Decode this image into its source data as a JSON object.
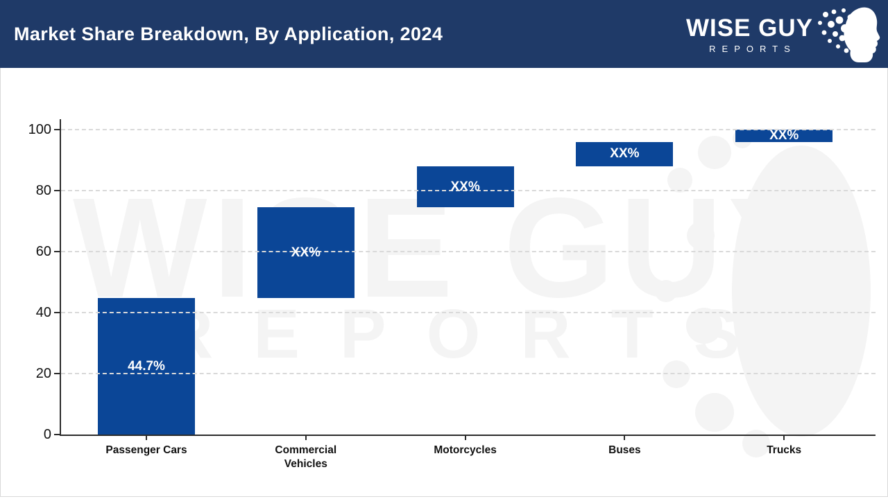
{
  "header": {
    "title": "Market Share Breakdown, By Application, 2024",
    "logo": {
      "line1": "WISE GUY",
      "line2": "REPORTS"
    }
  },
  "watermark": {
    "line1": "WISE GUY",
    "line2": "REPORTS"
  },
  "chart_data": {
    "type": "bar",
    "subtype": "waterfall",
    "title": "Market Share Breakdown, By Application, 2024",
    "xlabel": "",
    "ylabel": "",
    "ylim": [
      0,
      100
    ],
    "yticks": [
      0,
      20,
      40,
      60,
      80,
      100
    ],
    "grid": "horizontal-dashed",
    "legend": null,
    "categories": [
      "Passenger Cars",
      "Commercial Vehicles",
      "Motorcycles",
      "Buses",
      "Trucks"
    ],
    "bars": [
      {
        "category": "Passenger Cars",
        "start": 0,
        "end": 44.7,
        "label": "44.7%"
      },
      {
        "category": "Commercial Vehicles",
        "start": 44.7,
        "end": 74.5,
        "label": "XX%"
      },
      {
        "category": "Motorcycles",
        "start": 74.5,
        "end": 88.0,
        "label": "XX%"
      },
      {
        "category": "Buses",
        "start": 88.0,
        "end": 95.9,
        "label": "XX%"
      },
      {
        "category": "Trucks",
        "start": 95.9,
        "end": 100.0,
        "label": "XX%"
      }
    ]
  },
  "colors": {
    "header_bg": "#1F3A68",
    "header_text": "#FFFFFF",
    "bar": "#0B4697",
    "bar_label": "#FFFFFF",
    "grid": "#D9D9D9",
    "axis": "#2B2B2B",
    "tick_text": "#111111",
    "watermark": "#F4F4F4"
  }
}
